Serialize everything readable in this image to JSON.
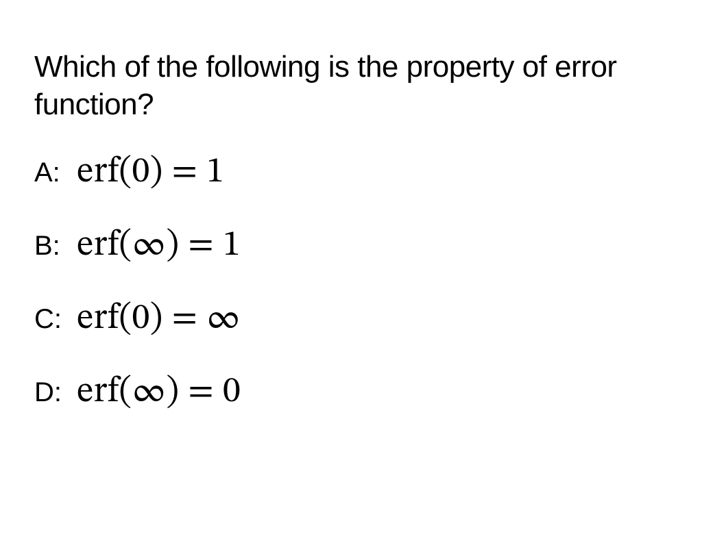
{
  "question": "Which of the following is the property of error function?",
  "options": [
    {
      "label": "A:",
      "erf_arg": "0",
      "rhs": "1"
    },
    {
      "label": "B:",
      "erf_arg": "∞",
      "rhs": "1"
    },
    {
      "label": "C:",
      "erf_arg": "0",
      "rhs": "∞"
    },
    {
      "label": "D:",
      "erf_arg": "∞",
      "rhs": "0"
    }
  ],
  "erf_text": "erf",
  "colors": {
    "text": "#000000",
    "background": "#ffffff"
  },
  "fontsizes": {
    "question": 44,
    "option_label": 40,
    "option_expr": 52
  }
}
